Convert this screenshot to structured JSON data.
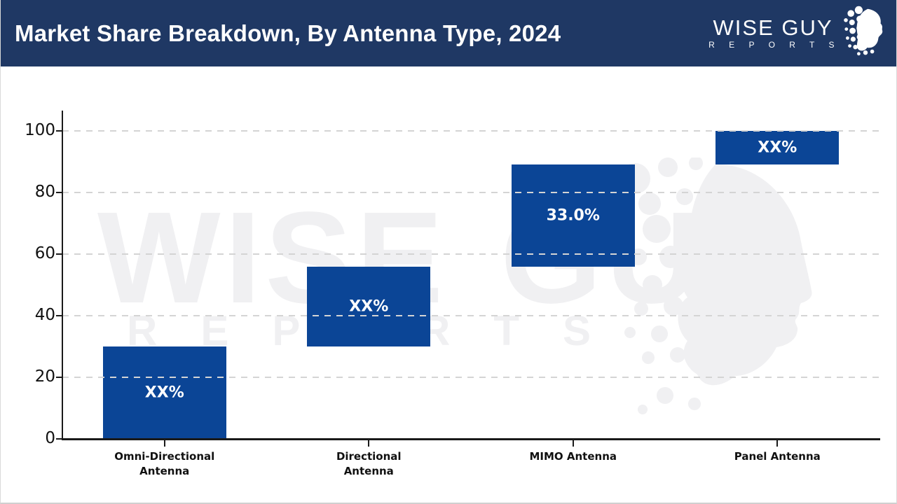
{
  "header": {
    "title": "Market Share Breakdown, By Antenna Type, 2024",
    "logo": {
      "line1": "WISE GUY",
      "line2": "R E P O R T S"
    }
  },
  "watermark": {
    "line1": "WISE GUY",
    "line2": "REPORTS"
  },
  "chart_data": {
    "type": "bar",
    "subtype": "waterfall",
    "title": "Market Share Breakdown, By Antenna Type, 2024",
    "categories": [
      "Omni-Directional Antenna",
      "Directional Antenna",
      "MIMO Antenna",
      "Panel Antenna"
    ],
    "category_lines": [
      [
        "Omni-Directional",
        "Antenna"
      ],
      [
        "Directional",
        "Antenna"
      ],
      [
        "MIMO Antenna"
      ],
      [
        "Panel Antenna"
      ]
    ],
    "bars": [
      {
        "category": "Omni-Directional Antenna",
        "start": 0,
        "end": 30,
        "value": 30,
        "label": "XX%"
      },
      {
        "category": "Directional Antenna",
        "start": 30,
        "end": 56,
        "value": 26,
        "label": "XX%"
      },
      {
        "category": "MIMO Antenna",
        "start": 56,
        "end": 89,
        "value": 33,
        "label": "33.0%"
      },
      {
        "category": "Panel Antenna",
        "start": 89,
        "end": 100,
        "value": 11,
        "label": "XX%"
      }
    ],
    "xlabel": "",
    "ylabel": "",
    "ylim": [
      0,
      100
    ],
    "yticks": [
      0,
      20,
      40,
      60,
      80,
      100
    ],
    "grid": "horizontal-dashed-above-bars",
    "legend": "none"
  },
  "colors": {
    "header_bg": "#1f3864",
    "bar": "#0b4596",
    "bar_label": "#ffffff",
    "grid": "#d4d4d4",
    "axis": "#1a1a1a",
    "watermark": "#f0f0f2",
    "frame_border": "#d9d9d9"
  }
}
